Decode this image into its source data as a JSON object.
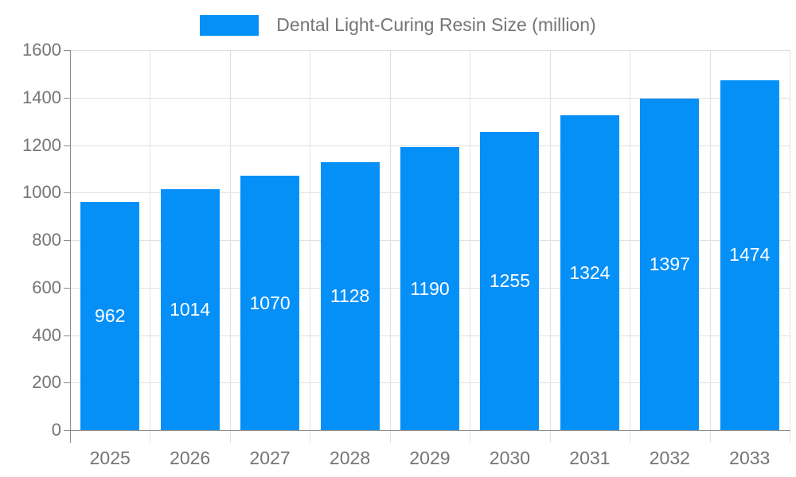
{
  "legend": {
    "label": "Dental Light-Curing Resin Size (million)"
  },
  "chart_data": {
    "type": "bar",
    "title": "Dental Light-Curing Resin Size (million)",
    "categories": [
      "2025",
      "2026",
      "2027",
      "2028",
      "2029",
      "2030",
      "2031",
      "2032",
      "2033"
    ],
    "values": [
      962,
      1014,
      1070,
      1128,
      1190,
      1255,
      1324,
      1397,
      1474
    ],
    "xlabel": "",
    "ylabel": "",
    "ylim": [
      0,
      1600
    ],
    "ytick_step": 200,
    "ytick_labels": [
      "0",
      "200",
      "400",
      "600",
      "800",
      "1000",
      "1200",
      "1400",
      "1600"
    ],
    "grid": true,
    "legend_position": "top-center",
    "bar_label_position": "inside-middle",
    "colors": {
      "bar": "#0590F8",
      "bar_value_label": "#ffffff",
      "axis_text": "#757575",
      "legend_text": "#757575",
      "gridline": "#e0e0e0",
      "axis_line": "#8c8c8c",
      "background": "#ffffff"
    }
  }
}
